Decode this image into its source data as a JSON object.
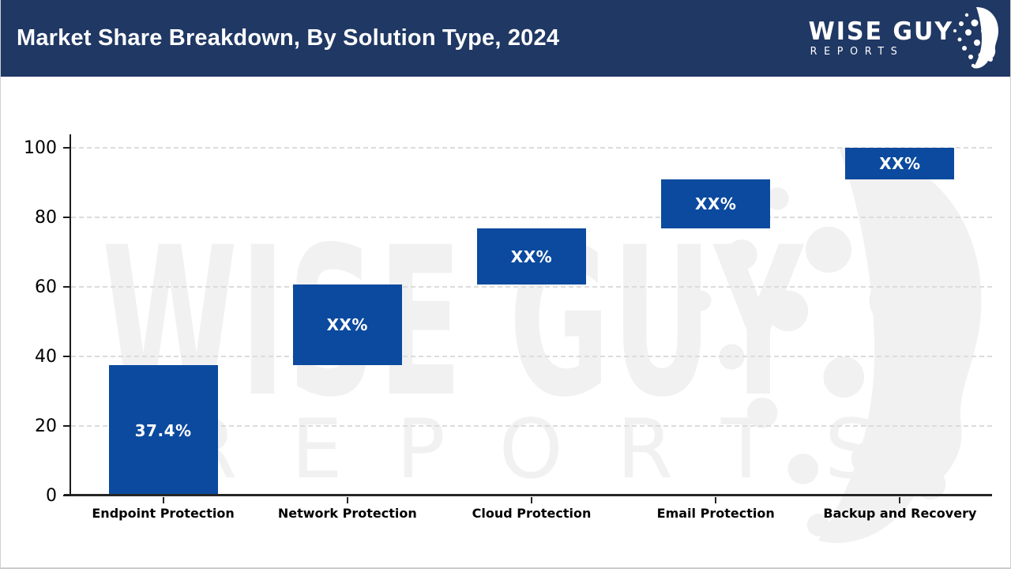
{
  "header": {
    "title": "Market Share Breakdown, By Solution Type, 2024",
    "logo": {
      "wordmark": "WISE GUY",
      "subtext": "REPORTS"
    }
  },
  "watermark": {
    "wordmark": "WISE GUY",
    "subtext": "REPORTS"
  },
  "chart_data": {
    "type": "bar",
    "subtype": "floating-waterfall-segments",
    "title": "Market Share Breakdown, By Solution Type, 2024",
    "categories": [
      "Endpoint Protection",
      "Network Protection",
      "Cloud Protection",
      "Email Protection",
      "Backup and Recovery"
    ],
    "segments": [
      {
        "category": "Endpoint Protection",
        "start": 0,
        "end": 37.4,
        "label": "37.4%"
      },
      {
        "category": "Network Protection",
        "start": 37.4,
        "end": 60.7,
        "label": "XX%"
      },
      {
        "category": "Cloud Protection",
        "start": 60.7,
        "end": 76.8,
        "label": "XX%"
      },
      {
        "category": "Email Protection",
        "start": 76.8,
        "end": 90.9,
        "label": "XX%"
      },
      {
        "category": "Backup and Recovery",
        "start": 90.9,
        "end": 100,
        "label": "XX%"
      }
    ],
    "y_ticks": [
      "0",
      "20",
      "40",
      "60",
      "80",
      "100"
    ],
    "ylim": [
      0,
      104
    ],
    "xlabel": "",
    "ylabel": "",
    "grid": "horizontal-dashed",
    "legend": "none",
    "bar_color": "#0b4a9e",
    "bar_label_color": "#ffffff"
  },
  "colors": {
    "header_bg": "#203864",
    "bar": "#0b4a9e",
    "axis": "#1a1a1a",
    "grid": "#dcdcdc",
    "watermark": "#f1f1f2",
    "title_text": "#ffffff"
  }
}
